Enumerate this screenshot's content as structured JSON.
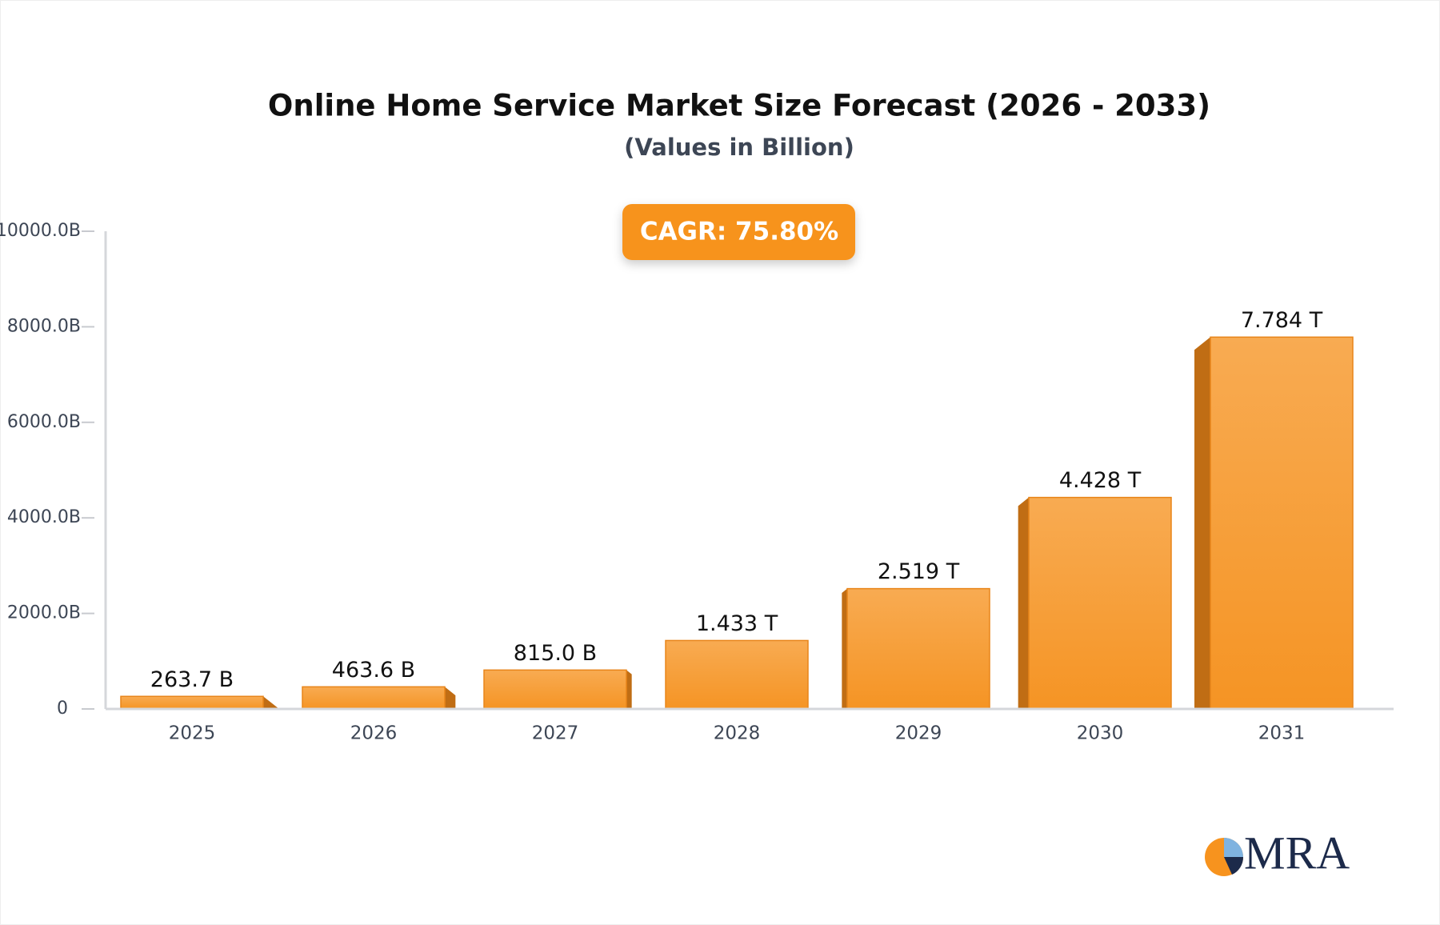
{
  "chart_data": {
    "type": "bar",
    "title": "Online Home Service Market Size Forecast (2026 - 2033)",
    "subtitle": "(Values in Billion)",
    "annotation": "CAGR: 75.80%",
    "logo": "MRA",
    "categories": [
      "2025",
      "2026",
      "2027",
      "2028",
      "2029",
      "2030",
      "2031"
    ],
    "values": [
      263.7,
      463.6,
      815.0,
      1433,
      2519,
      4428,
      7784
    ],
    "value_labels": [
      "263.7 B",
      "463.6 B",
      "815.0 B",
      "1.433 T",
      "2.519 T",
      "4.428 T",
      "7.784 T"
    ],
    "color": "#f7982a",
    "ylim": [
      0,
      10000
    ],
    "yticks": [
      0,
      {
        "value": 2000,
        "label": "2000.0B"
      },
      {
        "value": 4000,
        "label": "4000.0B"
      },
      {
        "value": 6000,
        "label": "6000.0B"
      },
      {
        "value": 8000,
        "label": "8000.0B"
      },
      {
        "value": 10000,
        "label": "10000.0B"
      }
    ],
    "grid": false
  }
}
